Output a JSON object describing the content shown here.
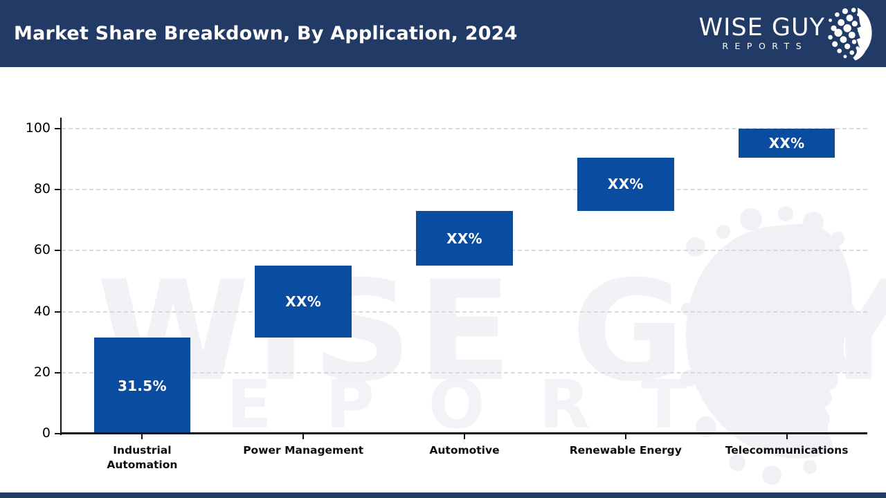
{
  "header": {
    "title": "Market Share Breakdown, By Application, 2024",
    "logo_name": "WISE GUY",
    "logo_sub": "REPORTS",
    "bg_color": "#213A66"
  },
  "watermark": {
    "line1": "WISE GUY",
    "line2": "REPORTS"
  },
  "chart_data": {
    "type": "bar",
    "subtype": "waterfall",
    "title": "Market Share Breakdown, By Application, 2024",
    "categories": [
      "Industrial\nAutomation",
      "Power Management",
      "Automotive",
      "Renewable Energy",
      "Telecommunications"
    ],
    "segments": [
      {
        "category": "Industrial Automation",
        "start": 0,
        "end": 31.5,
        "label": "31.5%"
      },
      {
        "category": "Power Management",
        "start": 31.5,
        "end": 55,
        "label": "XX%"
      },
      {
        "category": "Automotive",
        "start": 55,
        "end": 73,
        "label": "XX%"
      },
      {
        "category": "Renewable Energy",
        "start": 73,
        "end": 90.5,
        "label": "XX%"
      },
      {
        "category": "Telecommunications",
        "start": 90.5,
        "end": 100,
        "label": "XX%"
      }
    ],
    "ylim": [
      0,
      100
    ],
    "yticks": [
      0,
      20,
      40,
      60,
      80,
      100
    ],
    "bar_color": "#0A4CA0",
    "grid": true,
    "grid_style": "dashed",
    "legend": false,
    "value_label_color": "#ffffff"
  }
}
